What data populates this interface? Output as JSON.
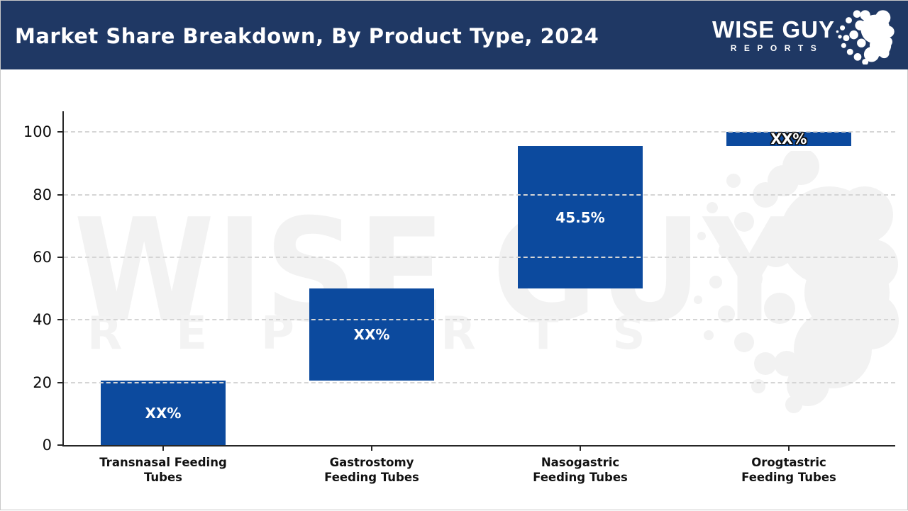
{
  "header": {
    "title": "Market Share Breakdown, By Product Type, 2024",
    "background_color": "#1f3864",
    "logo": {
      "line1": "WISE GUY",
      "line2": "REPORTS"
    }
  },
  "watermark": {
    "line1": "WISE GUY",
    "line2": "REPORTS"
  },
  "chart_data": {
    "type": "bar",
    "subtype": "floating-waterfall",
    "title": "Market Share Breakdown, By Product Type, 2024",
    "categories": [
      "Transnasal Feeding Tubes",
      "Gastrostomy Feeding Tubes",
      "Nasogastric Feeding Tubes",
      "Orogtastric Feeding Tubes"
    ],
    "category_label_lines": [
      [
        "Transnasal Feeding",
        "Tubes"
      ],
      [
        "Gastrostomy",
        "Feeding Tubes"
      ],
      [
        "Nasogastric",
        "Feeding Tubes"
      ],
      [
        "Orogtastric",
        "Feeding Tubes"
      ]
    ],
    "bars": [
      {
        "category": "Transnasal Feeding Tubes",
        "start": 0,
        "end": 20.5,
        "label": "XX%",
        "label_outlined": false
      },
      {
        "category": "Gastrostomy Feeding Tubes",
        "start": 20.5,
        "end": 50,
        "label": "XX%",
        "label_outlined": false
      },
      {
        "category": "Nasogastric Feeding Tubes",
        "start": 50,
        "end": 95.5,
        "label": "45.5%",
        "label_outlined": false
      },
      {
        "category": "Orogtastric Feeding Tubes",
        "start": 95.5,
        "end": 100,
        "label": "XX%",
        "label_outlined": true
      }
    ],
    "bar_color": "#0c4a9e",
    "bar_label_color": "#ffffff",
    "ylim": [
      0,
      100
    ],
    "yticks": [
      0,
      20,
      40,
      60,
      80,
      100
    ],
    "grid": "horizontal-dashed",
    "legend": "none"
  }
}
